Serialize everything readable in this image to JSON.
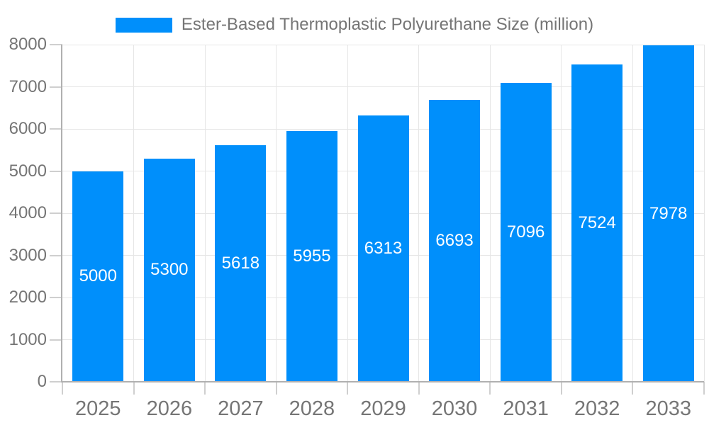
{
  "chart": {
    "legend": {
      "label": "Ester-Based Thermoplastic Polyurethane Size (million)",
      "swatch_color": "#008ffb"
    },
    "colors": {
      "bar": "#008ffb",
      "grid": "#e6e6e6",
      "axis": "#b0b0b0",
      "tick": "#cfcfcf",
      "text": "#757575",
      "bar_label_text": "#ffffff",
      "background": "#ffffff"
    }
  },
  "chart_data": {
    "type": "bar",
    "title": "Ester-Based Thermoplastic Polyurethane Size (million)",
    "series": [
      {
        "name": "Ester-Based Thermoplastic Polyurethane Size (million)",
        "values": [
          5000,
          5300,
          5618,
          5955,
          6313,
          6693,
          7096,
          7524,
          7978
        ]
      }
    ],
    "categories": [
      "2025",
      "2026",
      "2027",
      "2028",
      "2029",
      "2030",
      "2031",
      "2032",
      "2033"
    ],
    "bar_labels": [
      "5000",
      "5300",
      "5618",
      "5955",
      "6313",
      "6693",
      "7096",
      "7524",
      "7978"
    ],
    "xlabel": "",
    "ylabel": "",
    "ylim": [
      0,
      8000
    ],
    "yticks": [
      0,
      1000,
      2000,
      3000,
      4000,
      5000,
      6000,
      7000,
      8000
    ],
    "grid": true,
    "legend_position": "top",
    "bar_label_placement": "centered inside bar, white text"
  }
}
